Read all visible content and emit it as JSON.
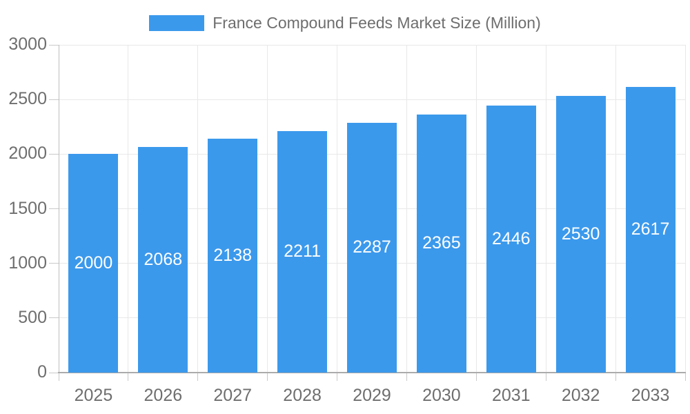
{
  "colors": {
    "bar": "#3B99EC",
    "bar_label_text": "#FFFFFF",
    "axis_line": "#ABABAB",
    "axis_line_light": "#BDBDBD",
    "tick_line": "#C9C9C9",
    "grid_line": "#E8E8E8",
    "label_text": "#6E6E6E",
    "background": "#FFFFFF"
  },
  "legend": {
    "label": "France Compound Feeds Market Size (Million)"
  },
  "chart_data": {
    "type": "bar",
    "title": "France Compound Feeds Market Size (Million)",
    "categories": [
      "2025",
      "2026",
      "2027",
      "2028",
      "2029",
      "2030",
      "2031",
      "2032",
      "2033"
    ],
    "values": [
      2000,
      2068,
      2138,
      2211,
      2287,
      2365,
      2446,
      2530,
      2617
    ],
    "xlabel": "",
    "ylabel": "",
    "ylim": [
      0,
      3000
    ],
    "yticks": [
      0,
      500,
      1000,
      1500,
      2000,
      2500,
      3000
    ],
    "grid": true,
    "legend_position": "top-center",
    "value_label_position": "inside-center"
  }
}
